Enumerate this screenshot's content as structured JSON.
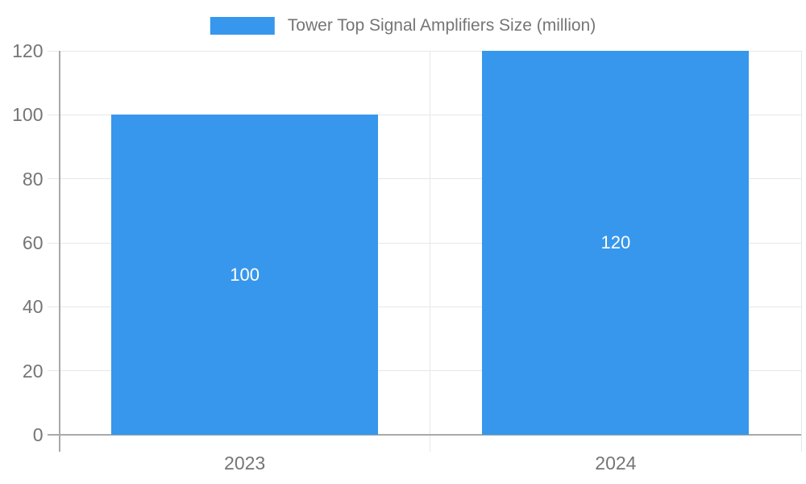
{
  "legend": {
    "label": "Tower Top Signal Amplifiers Size (million)"
  },
  "chart_data": {
    "type": "bar",
    "title": "",
    "categories": [
      "2023",
      "2024"
    ],
    "series": [
      {
        "name": "Tower Top Signal Amplifiers Size (million)",
        "values": [
          100,
          120
        ]
      }
    ],
    "bar_labels": [
      "100",
      "120"
    ],
    "xlabel": "",
    "ylabel": "",
    "ylim": [
      0,
      120
    ],
    "yticks": [
      0,
      20,
      40,
      60,
      80,
      100,
      120
    ],
    "grid": true,
    "legend_position": "top"
  },
  "colors": {
    "bar": "#3797EC",
    "grid": "#E7E7E7",
    "axis": "#A9A9A9",
    "axis_label": "#757575",
    "legend_text": "#757575",
    "value_label": "#FFFFFF",
    "background": "#FFFFFF"
  }
}
